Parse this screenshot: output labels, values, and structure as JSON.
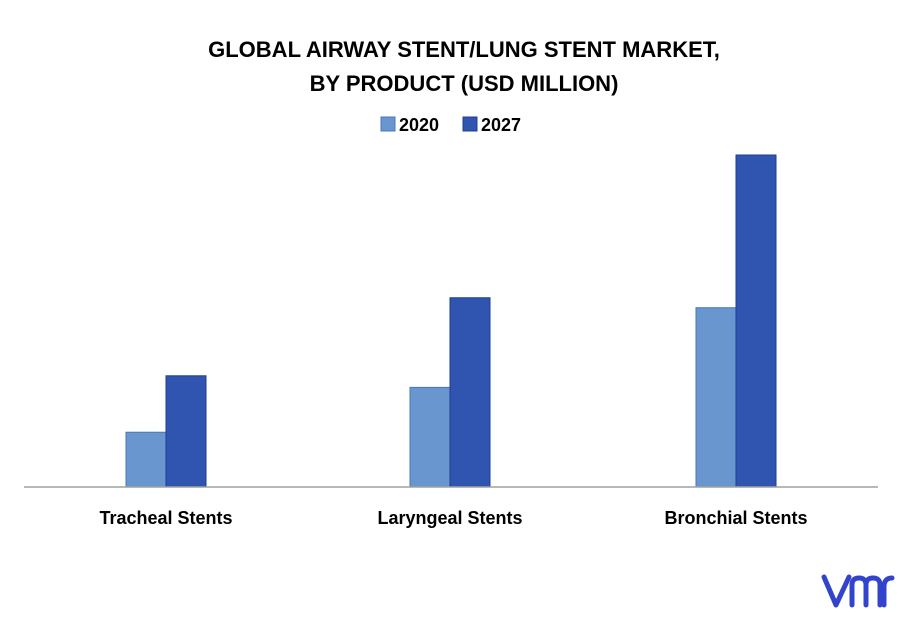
{
  "chart_data": {
    "type": "bar",
    "title": "GLOBAL AIRWAY STENT/LUNG STENT MARKET,",
    "subtitle": "BY PRODUCT (USD MILLION)",
    "categories": [
      "Tracheal Stents",
      "Laryngeal Stents",
      "Bronchial Stents"
    ],
    "series": [
      {
        "name": "2020",
        "values": [
          16.5,
          30,
          54
        ],
        "color": "#6a96cf",
        "stroke": "#4a78b8"
      },
      {
        "name": "2027",
        "values": [
          33.5,
          57,
          100
        ],
        "color": "#2f55b0",
        "stroke": "#1f3f8f"
      }
    ],
    "ylim": [
      0,
      100
    ],
    "grid": false,
    "legend_position": "top-center",
    "axis_color": "#a0a0a0"
  },
  "logo": {
    "text": "vmr",
    "color": "#3344cc"
  }
}
